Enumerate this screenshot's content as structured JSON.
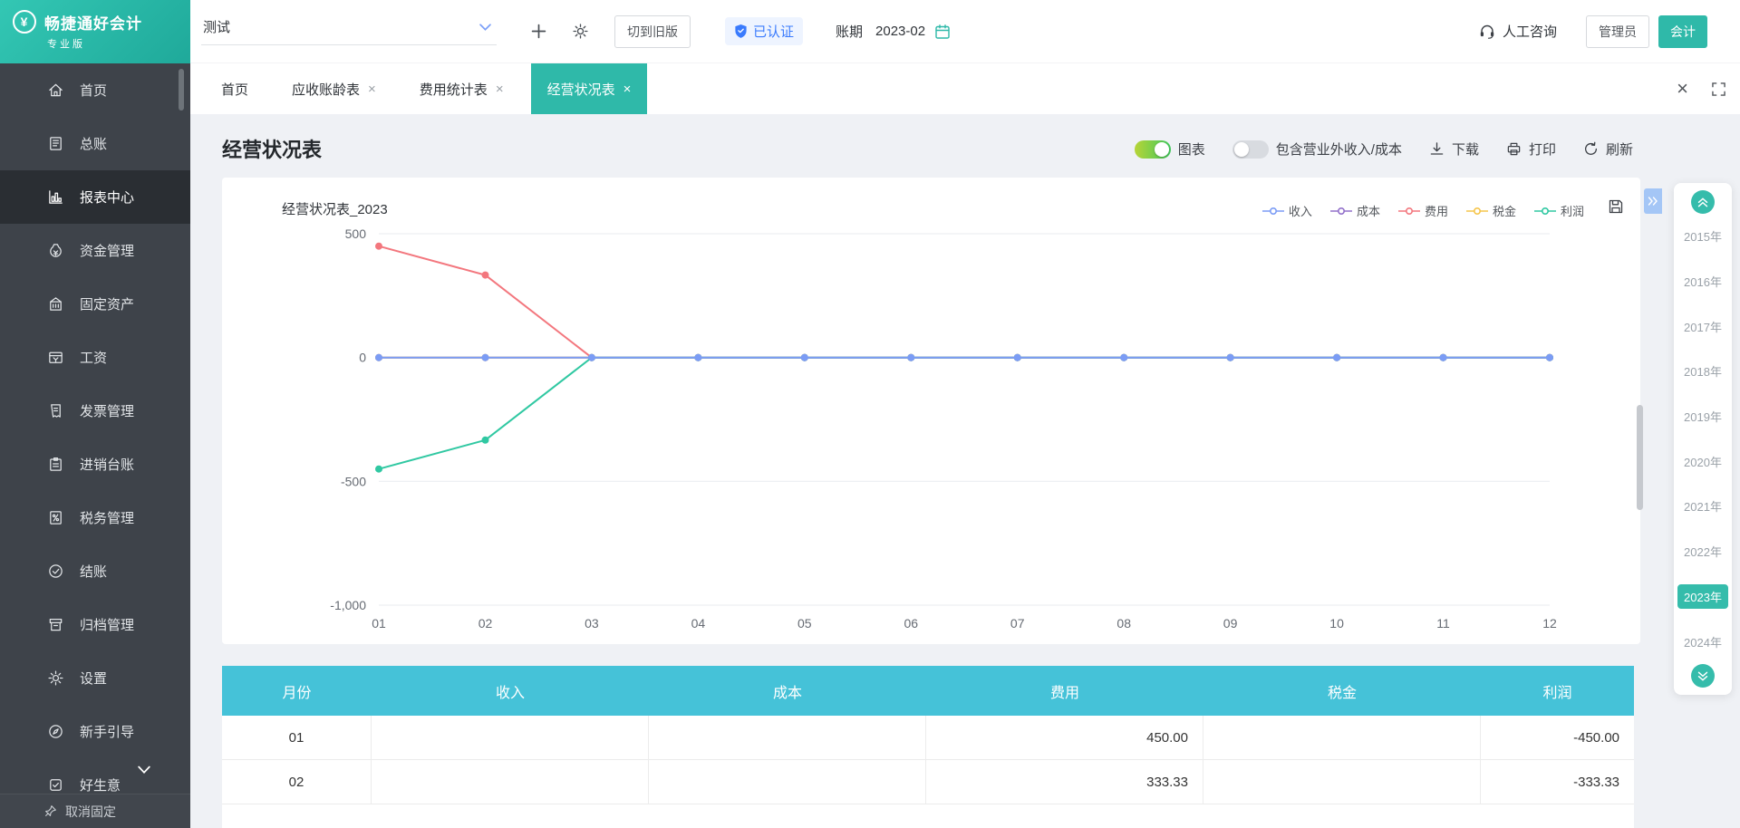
{
  "app": {
    "logo_title": "畅捷通好会计",
    "logo_subtitle": "专业版",
    "brand_color": "#2fb9a9"
  },
  "sidebar": {
    "items": [
      {
        "label": "首页",
        "icon": "home-icon",
        "active": false
      },
      {
        "label": "总账",
        "icon": "ledger-icon",
        "active": false
      },
      {
        "label": "报表中心",
        "icon": "report-icon",
        "active": true
      },
      {
        "label": "资金管理",
        "icon": "fund-icon",
        "active": false
      },
      {
        "label": "固定资产",
        "icon": "asset-icon",
        "active": false
      },
      {
        "label": "工资",
        "icon": "salary-icon",
        "active": false
      },
      {
        "label": "发票管理",
        "icon": "invoice-icon",
        "active": false
      },
      {
        "label": "进销台账",
        "icon": "trade-icon",
        "active": false
      },
      {
        "label": "税务管理",
        "icon": "tax-icon",
        "active": false
      },
      {
        "label": "结账",
        "icon": "closing-icon",
        "active": false
      },
      {
        "label": "归档管理",
        "icon": "archive-icon",
        "active": false
      },
      {
        "label": "设置",
        "icon": "settings-icon",
        "active": false
      },
      {
        "label": "新手引导",
        "icon": "guide-icon",
        "active": false
      },
      {
        "label": "好生意",
        "icon": "app-icon",
        "active": false
      }
    ],
    "unpin_label": "取消固定"
  },
  "topbar": {
    "company": "测试",
    "switch_old_label": "切到旧版",
    "certified_label": "已认证",
    "period_label": "账期",
    "period_value": "2023-02",
    "consult_label": "人工咨询",
    "admin_label": "管理员",
    "role_label": "会计"
  },
  "tabs": {
    "items": [
      {
        "label": "首页",
        "closable": false,
        "active": false
      },
      {
        "label": "应收账龄表",
        "closable": true,
        "active": false
      },
      {
        "label": "费用统计表",
        "closable": true,
        "active": false
      },
      {
        "label": "经营状况表",
        "closable": true,
        "active": true
      }
    ]
  },
  "page": {
    "title": "经营状况表",
    "toggle_chart_label": "图表",
    "toggle_chart_on": true,
    "toggle_include_label": "包含营业外收入/成本",
    "toggle_include_on": false,
    "download_label": "下载",
    "print_label": "打印",
    "refresh_label": "刷新"
  },
  "chart_data": {
    "type": "line",
    "title": "经营状况表_2023",
    "x": [
      "01",
      "02",
      "03",
      "04",
      "05",
      "06",
      "07",
      "08",
      "09",
      "10",
      "11",
      "12"
    ],
    "ylim": [
      -1000,
      500
    ],
    "yticks": [
      {
        "v": 500,
        "label": "500"
      },
      {
        "v": 0,
        "label": "0"
      },
      {
        "v": -500,
        "label": "-500"
      },
      {
        "v": -1000,
        "label": "-1,000"
      }
    ],
    "grid": true,
    "legend_position": "top-right",
    "series": [
      {
        "name": "收入",
        "color": "#7b9cf5",
        "values": [
          0,
          0,
          0,
          0,
          0,
          0,
          0,
          0,
          0,
          0,
          0,
          0
        ]
      },
      {
        "name": "成本",
        "color": "#9270ca",
        "values": [
          0,
          0,
          0,
          0,
          0,
          0,
          0,
          0,
          0,
          0,
          0,
          0
        ]
      },
      {
        "name": "费用",
        "color": "#f3777e",
        "values": [
          450,
          333.33,
          0,
          0,
          0,
          0,
          0,
          0,
          0,
          0,
          0,
          0
        ]
      },
      {
        "name": "税金",
        "color": "#f6c54b",
        "values": [
          0,
          0,
          0,
          0,
          0,
          0,
          0,
          0,
          0,
          0,
          0,
          0
        ]
      },
      {
        "name": "利润",
        "color": "#30c8a2",
        "values": [
          -450,
          -333.33,
          0,
          0,
          0,
          0,
          0,
          0,
          0,
          0,
          0,
          0
        ]
      }
    ]
  },
  "table": {
    "headers": [
      "月份",
      "收入",
      "成本",
      "费用",
      "税金",
      "利润"
    ],
    "rows": [
      [
        "01",
        "",
        "",
        "450.00",
        "",
        "-450.00"
      ],
      [
        "02",
        "",
        "",
        "333.33",
        "",
        "-333.33"
      ]
    ]
  },
  "year_panel": {
    "years": [
      "2015年",
      "2016年",
      "2017年",
      "2018年",
      "2019年",
      "2020年",
      "2021年",
      "2022年",
      "2023年",
      "2024年"
    ],
    "selected": "2023年"
  }
}
